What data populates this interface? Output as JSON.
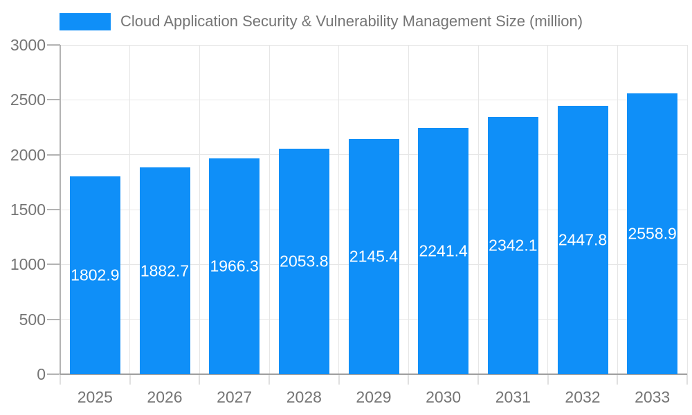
{
  "chart_data": {
    "type": "bar",
    "title": "Cloud Application Security & Vulnerability Management Size (million)",
    "legend": {
      "position": "top-left",
      "entries": [
        "Cloud Application Security & Vulnerability Management Size (million)"
      ]
    },
    "categories": [
      "2025",
      "2026",
      "2027",
      "2028",
      "2029",
      "2030",
      "2031",
      "2032",
      "2033"
    ],
    "series": [
      {
        "name": "Cloud Application Security & Vulnerability Management Size (million)",
        "values": [
          1802.9,
          1882.7,
          1966.3,
          2053.8,
          2145.4,
          2241.4,
          2342.1,
          2447.8,
          2558.9
        ]
      }
    ],
    "xlabel": "",
    "ylabel": "",
    "ylim": [
      0,
      3000
    ],
    "yticks": [
      0,
      500,
      1000,
      1500,
      2000,
      2500,
      3000
    ],
    "grid": true,
    "value_labels": "inside-center",
    "colors": {
      "bar": "#0f8ff8",
      "value_label": "#ffffff",
      "axis_text": "#757575",
      "legend_text": "#757575",
      "gridline": "#e6e6e6",
      "x_axis_line": "#9e9e9e",
      "y_axis_line": "#b3b3b3",
      "x_tick": "#e0e0e0",
      "y_tick": "#b3b3b3",
      "background": "#ffffff"
    }
  }
}
